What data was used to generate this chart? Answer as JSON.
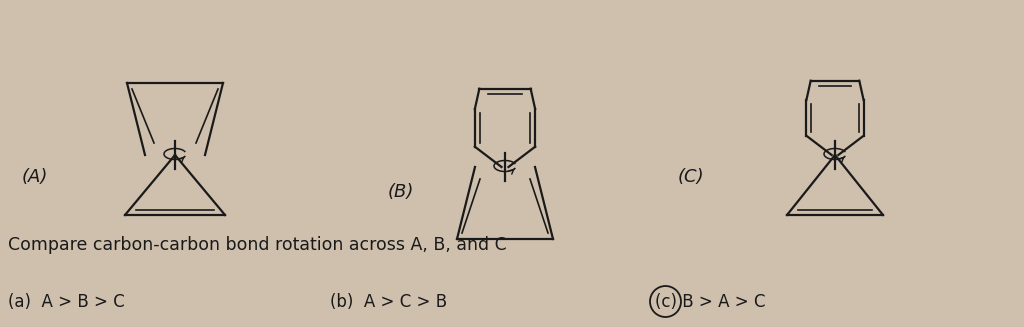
{
  "bg_color": "#cfc0ae",
  "text_color": "#1a1a1a",
  "title_text": "Compare carbon-carbon bond rotation across A, B, and C",
  "answer_a": "(a)  A > B > C",
  "answer_b": "(b)  A > C > B",
  "answer_c": "(c) B > A > C",
  "label_A": "(A)",
  "label_B": "(B)",
  "label_C": "(C)",
  "font_size_title": 12.5,
  "font_size_labels": 13,
  "font_size_answers": 12
}
